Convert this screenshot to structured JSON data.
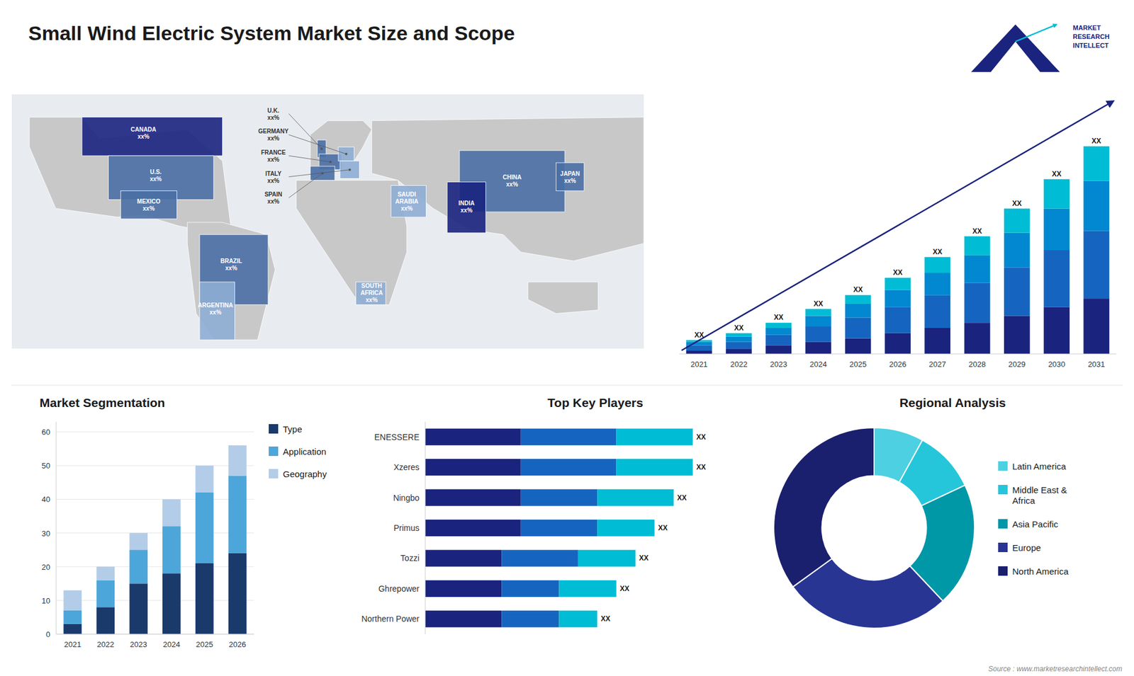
{
  "title": "Small Wind Electric System Market Size and Scope",
  "annotations": [
    "MARKET\nRESEARCH\nINTELLECT",
    "Source : www.marketresearchintellect.com"
  ],
  "chart_data": [
    {
      "type": "map",
      "categories": [
        "CANADA\nxx%",
        "U.S.\nxx%",
        "MEXICO\nxx%",
        "BRAZIL\nxx%",
        "ARGENTINA\nxx%",
        "U.K.\nxx%",
        "FRANCE\nxx%",
        "SPAIN\nxx%",
        "GERMANY\nxx%",
        "ITALY\nxx%",
        "SAUDI\nARABIA\nxx%",
        "SOUTH\nAFRICA\nxx%",
        "CHINA\nxx%",
        "INDIA\nxx%",
        "JAPAN\nxx%"
      ],
      "colors": [
        "#1a237e",
        "#4a6fa5",
        "#4a6fa5",
        "#4a6fa5",
        "#8eadd4",
        "#4a6fa5",
        "#4a6fa5",
        "#4a6fa5",
        "#8eadd4",
        "#8eadd4",
        "#8eadd4",
        "#8eadd4",
        "#4a6fa5",
        "#1a237e",
        "#4a6fa5"
      ],
      "color": "#c8c8c8"
    },
    {
      "type": "bar",
      "stacked": true,
      "categories": [
        "2021",
        "2022",
        "2023",
        "2024",
        "2025",
        "2026",
        "2027",
        "2028",
        "2029",
        "2030",
        "2031"
      ],
      "series": [
        {
          "color": "#1a237e",
          "values": [
            2,
            3,
            5,
            7,
            9,
            12,
            15,
            18,
            22,
            27,
            32
          ]
        },
        {
          "color": "#1565c0",
          "values": [
            3,
            4,
            6,
            9,
            12,
            15,
            19,
            23,
            28,
            33,
            39
          ]
        },
        {
          "color": "#0288d1",
          "values": [
            2,
            3,
            4,
            6,
            8,
            10,
            13,
            16,
            20,
            24,
            29
          ]
        },
        {
          "color": "#00bcd4",
          "values": [
            1,
            2,
            3,
            4,
            5,
            7,
            9,
            11,
            14,
            17,
            20
          ]
        }
      ],
      "value_labels": [
        "XX",
        "XX",
        "XX",
        "XX",
        "XX",
        "XX",
        "XX",
        "XX",
        "XX",
        "XX",
        "XX"
      ],
      "ylim": [
        0,
        150
      ],
      "tick_labels": "x"
    },
    {
      "type": "bar",
      "stacked": true,
      "title": "Market Segmentation",
      "categories": [
        "2021",
        "2022",
        "2023",
        "2024",
        "2025",
        "2026"
      ],
      "series": [
        {
          "name": "Type",
          "color": "#1a3a6b",
          "values": [
            3,
            8,
            15,
            18,
            21,
            24
          ]
        },
        {
          "name": "Application",
          "color": "#4da6d9",
          "values": [
            4,
            8,
            10,
            14,
            21,
            23
          ]
        },
        {
          "name": "Geography",
          "color": "#b3cde8",
          "values": [
            6,
            4,
            5,
            8,
            8,
            9
          ]
        }
      ],
      "ylim": [
        0,
        63
      ],
      "yticks": [
        0,
        10,
        20,
        30,
        40,
        50,
        60
      ],
      "grid": true,
      "legend": "right"
    },
    {
      "type": "bar",
      "stacked": true,
      "orientation": "horizontal",
      "title": "Top Key Players",
      "categories": [
        "ENESSERE",
        "Xzeres",
        "Ningbo",
        "Primus",
        "Tozzi",
        "Ghrepower",
        "Northern Power"
      ],
      "series": [
        {
          "color": "#1a237e",
          "values": [
            5,
            5,
            5,
            5,
            4,
            4,
            4
          ]
        },
        {
          "color": "#1565c0",
          "values": [
            5,
            5,
            4,
            4,
            4,
            3,
            3
          ]
        },
        {
          "color": "#00bcd4",
          "values": [
            4,
            4,
            4,
            3,
            3,
            3,
            2
          ]
        }
      ],
      "value_labels": [
        "XX",
        "XX",
        "XX",
        "XX",
        "XX",
        "XX",
        "XX"
      ],
      "xlim": [
        0,
        17
      ],
      "tick_labels": "y"
    },
    {
      "type": "pie",
      "title": "Regional Analysis",
      "categories": [
        "Latin America",
        "Middle East &\nAfrica",
        "Asia Pacific",
        "Europe",
        "North America"
      ],
      "values": [
        8,
        10,
        20,
        27,
        35
      ],
      "colors": [
        "#4dd0e1",
        "#26c6da",
        "#0097a7",
        "#283593",
        "#1a1f6e"
      ],
      "legend": "right"
    }
  ]
}
